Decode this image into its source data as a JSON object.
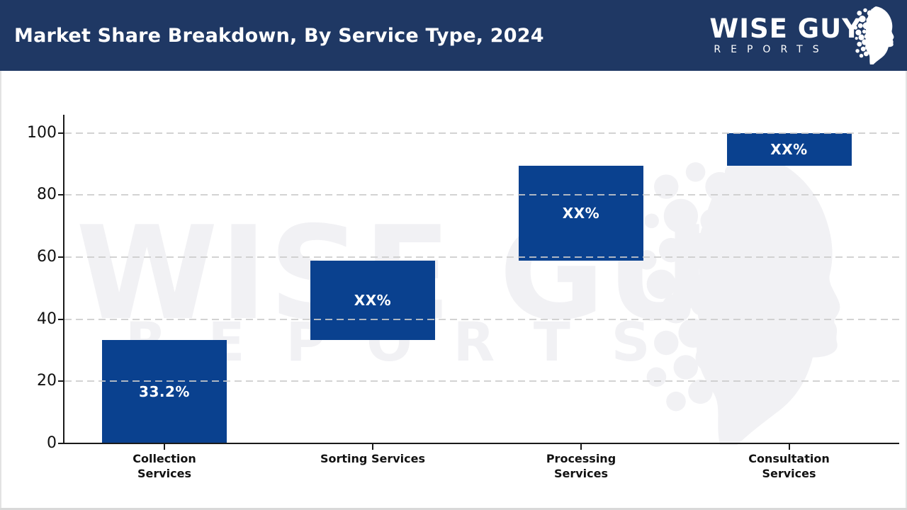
{
  "header": {
    "title": "Market Share Breakdown, By Service Type, 2024",
    "logo": {
      "line1": "WISE GUY",
      "line2": "REPORTS"
    }
  },
  "watermark": {
    "line1": "WISE GUY",
    "line2": "REPORTS"
  },
  "colors": {
    "header_bg": "#1f3864",
    "bar": "#0a418f",
    "grid": "#cbcbcb",
    "axis": "#1a1a1a",
    "bar_label": "#ffffff",
    "watermark": "#f1f1f4"
  },
  "chart_data": {
    "type": "bar",
    "subtype": "waterfall",
    "title": "Market Share Breakdown, By Service Type, 2024",
    "xlabel": "",
    "ylabel": "",
    "ylim": [
      0,
      100
    ],
    "yticks": [
      0,
      20,
      40,
      60,
      80,
      100
    ],
    "grid": "horizontal-dashed",
    "legend": "none",
    "categories": [
      "Collection Services",
      "Sorting Services",
      "Processing Services",
      "Consultation Services"
    ],
    "category_lines": [
      [
        "Collection",
        "Services"
      ],
      [
        "Sorting Services"
      ],
      [
        "Processing",
        "Services"
      ],
      [
        "Consultation",
        "Services"
      ]
    ],
    "segments": [
      {
        "category": "Collection Services",
        "start": 0,
        "end": 33.2,
        "label": "33.2%"
      },
      {
        "category": "Sorting Services",
        "start": 33.2,
        "end": 58.9,
        "label": "XX%"
      },
      {
        "category": "Processing Services",
        "start": 58.9,
        "end": 89.4,
        "label": "XX%"
      },
      {
        "category": "Consultation Services",
        "start": 89.4,
        "end": 100,
        "label": "XX%"
      }
    ]
  }
}
